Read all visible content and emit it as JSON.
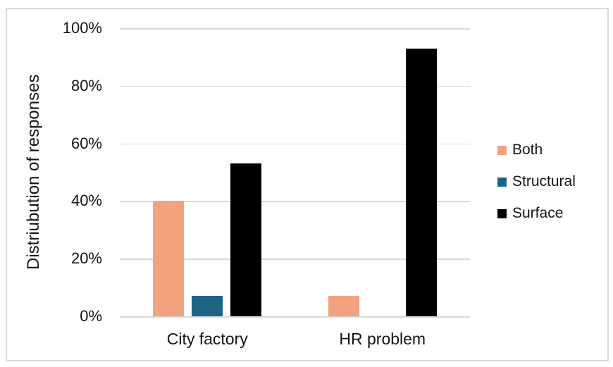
{
  "chart_data": {
    "type": "bar",
    "title": "",
    "xlabel": "",
    "ylabel": "Distriubution of responses",
    "categories": [
      "City factory",
      "HR problem"
    ],
    "series": [
      {
        "name": "Both",
        "color": "#F1A37E",
        "values": [
          40,
          7
        ]
      },
      {
        "name": "Structural",
        "color": "#1E6585",
        "values": [
          7,
          0
        ]
      },
      {
        "name": "Surface",
        "color": "#000000",
        "values": [
          53,
          93
        ]
      }
    ],
    "ylim": [
      0,
      100
    ],
    "ytick_interval": 20,
    "ytick_labels": [
      "0%",
      "20%",
      "40%",
      "60%",
      "80%",
      "100%"
    ],
    "grid": true,
    "gridline_color": "#d9d9d9",
    "frame_color": "#d9d9d9",
    "legend_position": "right"
  }
}
